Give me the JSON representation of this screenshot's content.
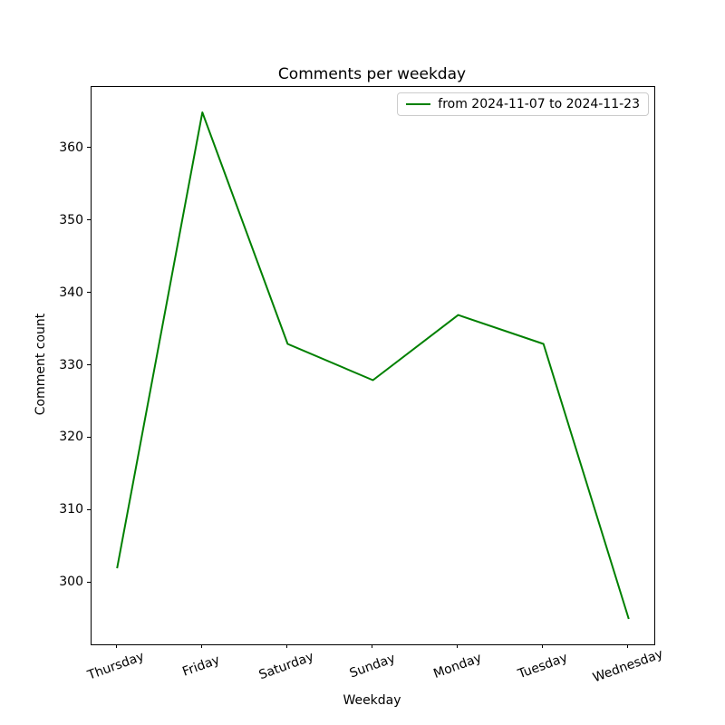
{
  "chart_data": {
    "type": "line",
    "title": "Comments per weekday",
    "xlabel": "Weekday",
    "ylabel": "Comment count",
    "categories": [
      "Thursday",
      "Friday",
      "Saturday",
      "Sunday",
      "Monday",
      "Tuesday",
      "Wednesday"
    ],
    "series": [
      {
        "name": "from 2024-11-07 to 2024-11-23",
        "color": "#008000",
        "values": [
          302,
          365,
          333,
          328,
          337,
          333,
          295
        ]
      }
    ],
    "yticks": [
      300,
      310,
      320,
      330,
      340,
      350,
      360
    ],
    "ylim": [
      291.5,
      368.5
    ],
    "x_margin": 0.3,
    "grid": false,
    "legend_position": "upper right",
    "line_width": 2,
    "spine_color": "#000000",
    "background_color": "#ffffff"
  }
}
